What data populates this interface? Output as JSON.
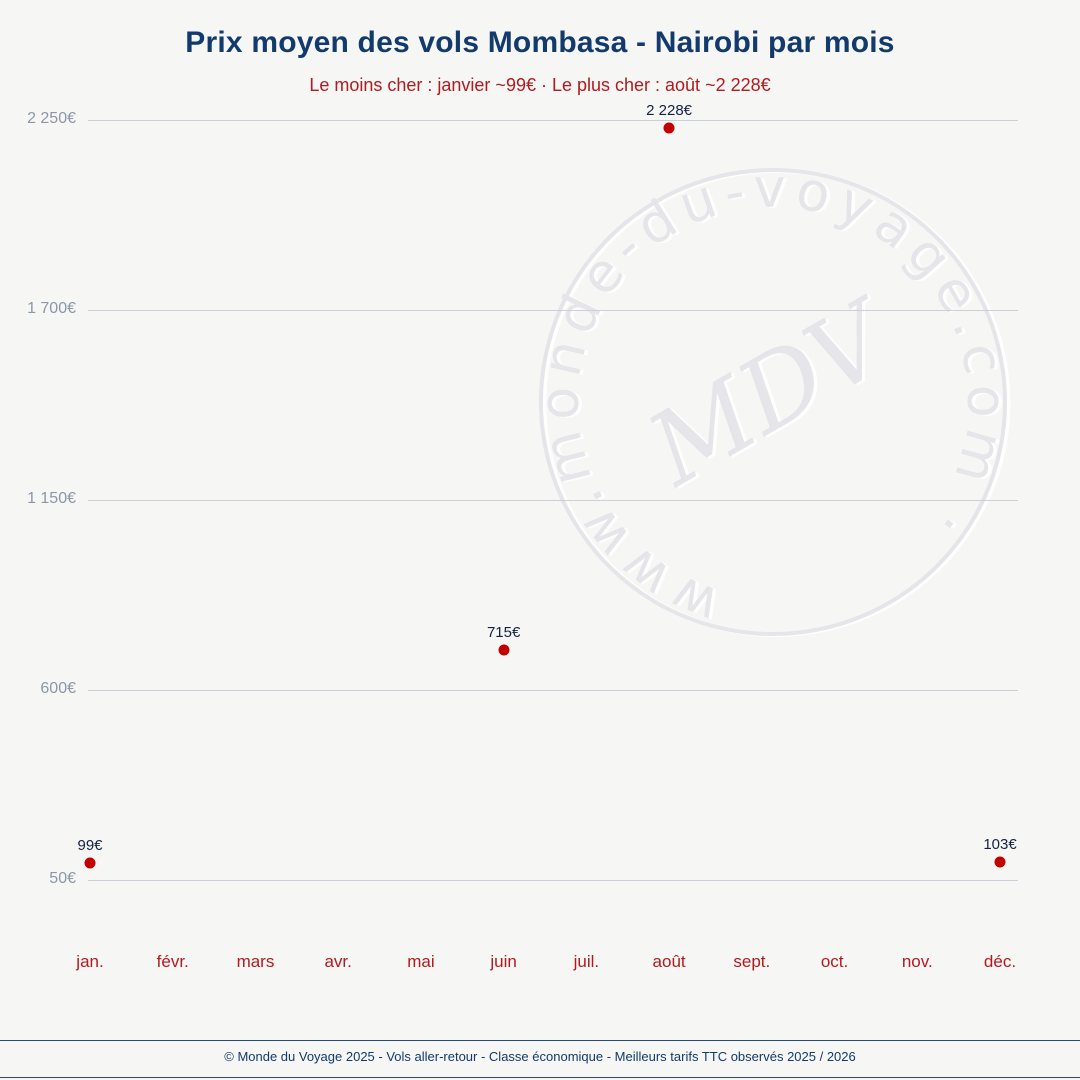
{
  "chart_data": {
    "type": "scatter",
    "title": "Prix moyen des vols Mombasa - Nairobi par mois",
    "subtitle": "Le moins cher : janvier ~99€ · Le plus cher : août ~2 228€",
    "categories": [
      "jan.",
      "févr.",
      "mars",
      "avr.",
      "mai",
      "juin",
      "juil.",
      "août",
      "sept.",
      "oct.",
      "nov.",
      "déc."
    ],
    "points": [
      {
        "category": "jan.",
        "category_index": 0,
        "value": 99,
        "label": "99€"
      },
      {
        "category": "juin",
        "category_index": 5,
        "value": 715,
        "label": "715€"
      },
      {
        "category": "août",
        "category_index": 7,
        "value": 2228,
        "label": "2 228€"
      },
      {
        "category": "déc.",
        "category_index": 11,
        "value": 103,
        "label": "103€"
      }
    ],
    "y_axis": {
      "min": 50,
      "max": 2250,
      "ticks": [
        2250,
        1700,
        1150,
        600,
        50
      ],
      "tick_labels": [
        "2 250€",
        "1 700€",
        "1 150€",
        "600€",
        "50€"
      ]
    },
    "grid": "horizontal",
    "legend": "none",
    "colors": {
      "background": "#f6f6f5",
      "title": "#123a6d",
      "subtitle": "#b01b1f",
      "point": "#c20000",
      "point_label": "#122240",
      "gridline": "#c9d0da",
      "y_label": "#8b97a7",
      "x_label": "#b01b1f",
      "footer": "#123a6d"
    }
  },
  "watermark": {
    "circle_text": "www.monde-du-voyage.com ·",
    "center_text": "MDV",
    "color": "#e4e4e8",
    "highlight": "#ffffff"
  },
  "footer": {
    "text": "© Monde du Voyage 2025 - Vols aller-retour - Classe économique - Meilleurs tarifs TTC observés 2025 / 2026"
  }
}
